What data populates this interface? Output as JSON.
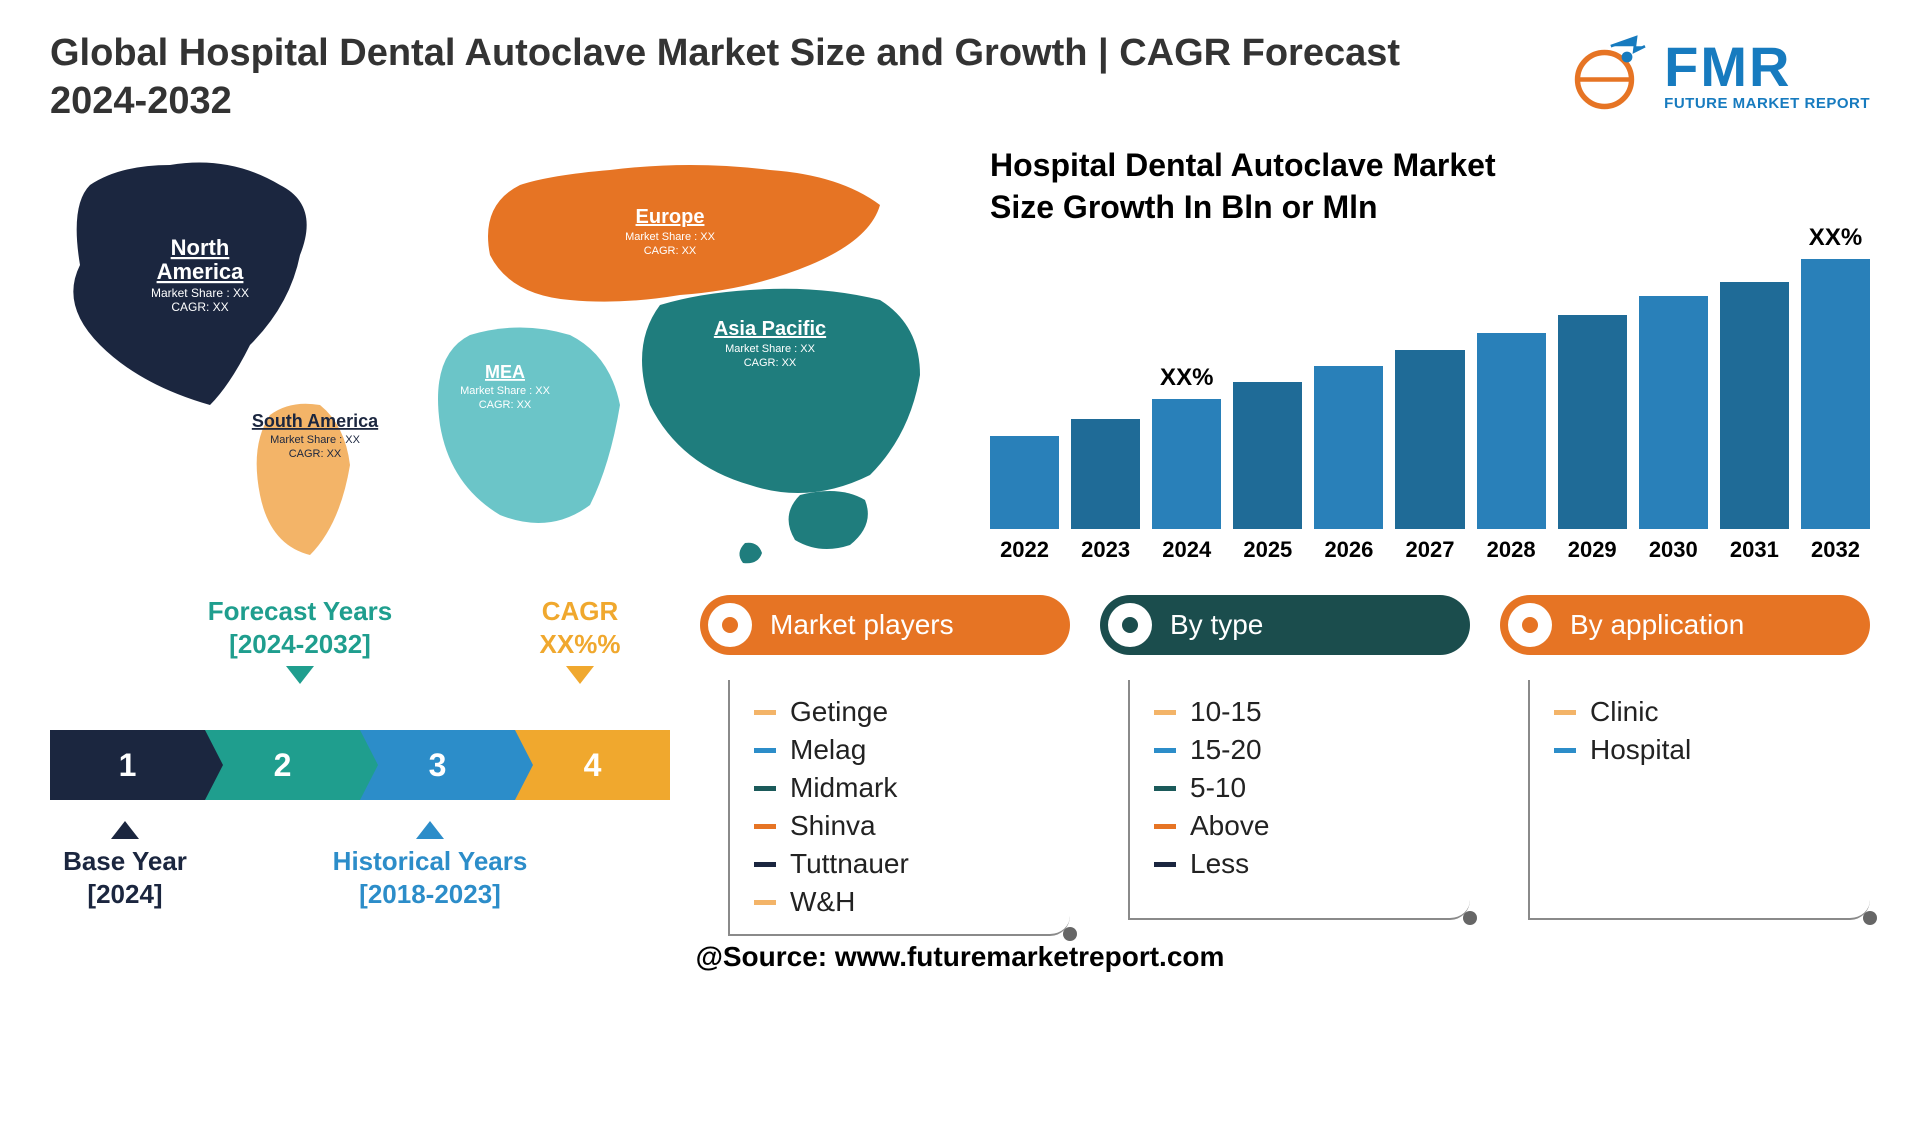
{
  "title": "Global Hospital Dental Autoclave Market Size and Growth | CAGR Forecast 2024-2032",
  "logo": {
    "main": "FMR",
    "sub": "FUTURE MARKET REPORT",
    "accent": "#e67424",
    "blue": "#177bbf"
  },
  "colors": {
    "dark_navy": "#1b263f",
    "teal": "#1f9e8e",
    "teal_light": "#6bc5c8",
    "blue_bar": "#2980b9",
    "blue_bar_dark": "#1f6b97",
    "orange": "#e67424",
    "amber": "#f0a82e",
    "blue_mid": "#2c8dc9"
  },
  "map": {
    "regions": [
      {
        "name": "North America",
        "share": "Market Share : XX",
        "cagr": "CAGR: XX",
        "color": "#1b263f",
        "label_color": "#ffffff"
      },
      {
        "name": "South America",
        "share": "Market Share : XX",
        "cagr": "CAGR: XX",
        "color": "#f3b468",
        "label_color": "#1b263f"
      },
      {
        "name": "MEA",
        "share": "Market Share : XX",
        "cagr": "CAGR: XX",
        "color": "#6bc5c8",
        "label_color": "#ffffff"
      },
      {
        "name": "Europe",
        "share": "Market Share : XX",
        "cagr": "CAGR: XX",
        "color": "#e67424",
        "label_color": "#ffffff"
      },
      {
        "name": "Asia Pacific",
        "share": "Market Share : XX",
        "cagr": "CAGR: XX",
        "color": "#1f7d7d",
        "label_color": "#ffffff"
      }
    ]
  },
  "bar_chart": {
    "title": "Hospital Dental Autoclave Market Size Growth In Bln or Mln",
    "type": "bar",
    "years": [
      "2022",
      "2023",
      "2024",
      "2025",
      "2026",
      "2027",
      "2028",
      "2029",
      "2030",
      "2031",
      "2032"
    ],
    "values": [
      100,
      118,
      140,
      158,
      175,
      192,
      210,
      230,
      250,
      265,
      290
    ],
    "ylim": [
      0,
      300
    ],
    "colors": [
      "#2980b9",
      "#1f6b97",
      "#2980b9",
      "#1f6b97",
      "#2980b9",
      "#1f6b97",
      "#2980b9",
      "#1f6b97",
      "#2980b9",
      "#1f6b97",
      "#2980b9"
    ],
    "label_fontsize": 22,
    "bar_width": 0.85,
    "annotations": [
      {
        "index": 2,
        "text": "XX%"
      },
      {
        "index": 10,
        "text": "XX%"
      }
    ]
  },
  "timeline": {
    "segments": [
      {
        "num": "1",
        "color": "#1b263f",
        "label": "Base Year [2024]",
        "label_color": "#1b263f",
        "pos": "bottom"
      },
      {
        "num": "2",
        "color": "#1f9e8e",
        "label": "Forecast Years [2024-2032]",
        "label_color": "#1f9e8e",
        "pos": "top"
      },
      {
        "num": "3",
        "color": "#2c8dc9",
        "label": "Historical Years [2018-2023]",
        "label_color": "#2c8dc9",
        "pos": "bottom"
      },
      {
        "num": "4",
        "color": "#f0a82e",
        "label": "CAGR XX%%",
        "label_color": "#f0a82e",
        "pos": "top"
      }
    ]
  },
  "pills": [
    {
      "header": "Market players",
      "color": "#e67424",
      "items": [
        {
          "label": "Getinge",
          "bullet": "#f3b468"
        },
        {
          "label": "Melag",
          "bullet": "#2c8dc9"
        },
        {
          "label": "Midmark",
          "bullet": "#1b5a5a"
        },
        {
          "label": "Shinva",
          "bullet": "#e67424"
        },
        {
          "label": "Tuttnauer",
          "bullet": "#1b263f"
        },
        {
          "label": "W&H",
          "bullet": "#f3b468"
        }
      ]
    },
    {
      "header": "By type",
      "color": "#1b4d4d",
      "items": [
        {
          "label": "10-15",
          "bullet": "#f3b468"
        },
        {
          "label": "15-20",
          "bullet": "#2c8dc9"
        },
        {
          "label": "5-10",
          "bullet": "#1b5a5a"
        },
        {
          "label": "Above",
          "bullet": "#e67424"
        },
        {
          "label": "Less",
          "bullet": "#1b263f"
        }
      ]
    },
    {
      "header": "By application",
      "color": "#e67424",
      "items": [
        {
          "label": "Clinic",
          "bullet": "#f3b468"
        },
        {
          "label": "Hospital",
          "bullet": "#2c8dc9"
        }
      ]
    }
  ],
  "source": "@Source: www.futuremarketreport.com"
}
